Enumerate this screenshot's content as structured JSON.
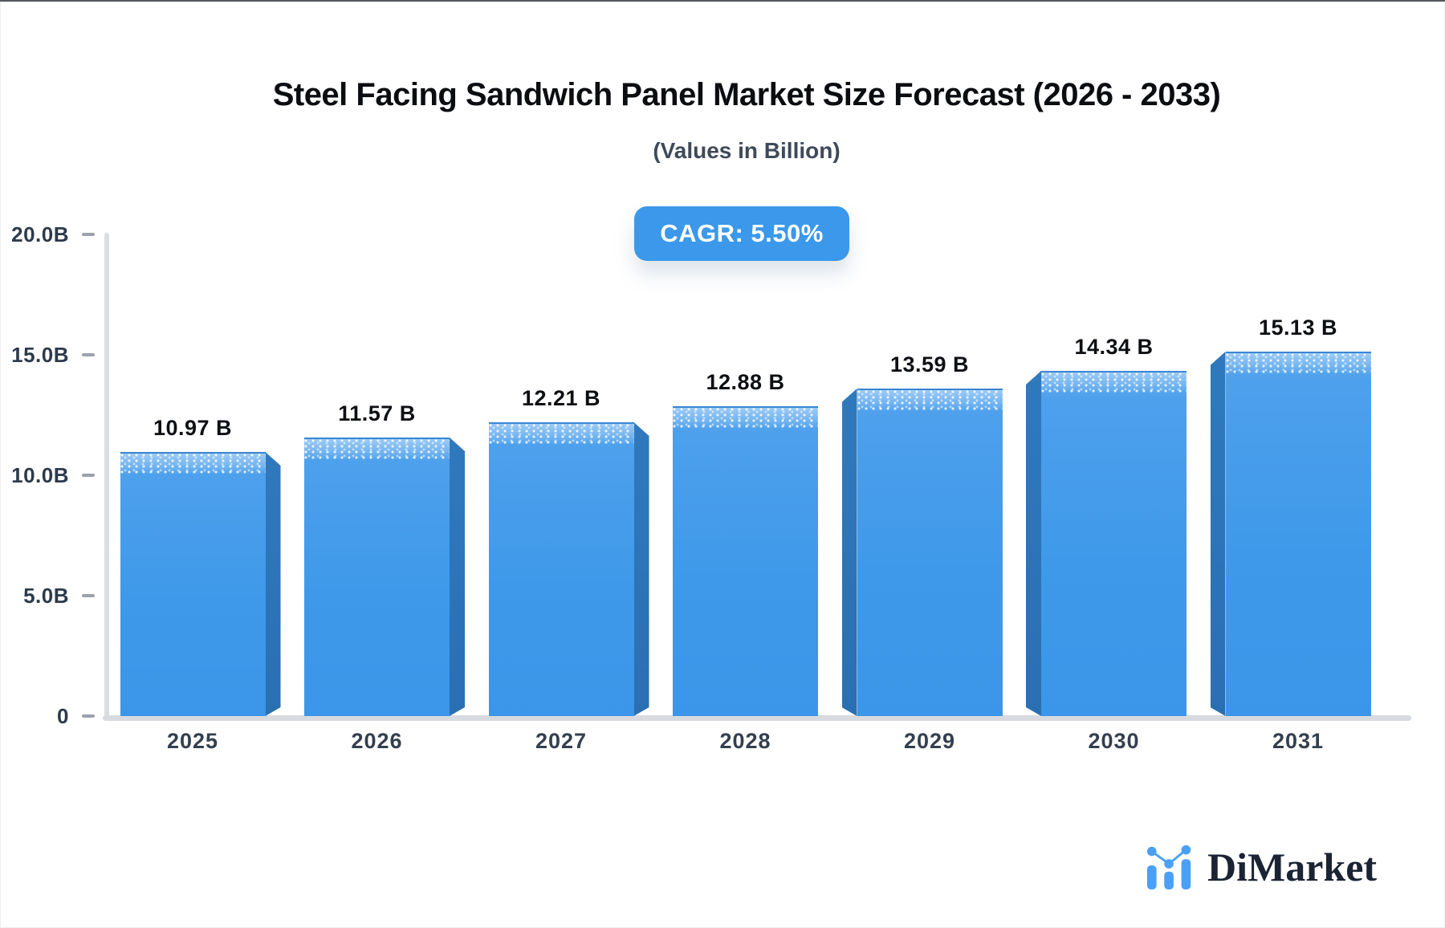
{
  "page": {
    "title": "Steel Facing Sandwich Panel Market Size Forecast (2026 - 2033)",
    "subtitle": "(Values in Billion)",
    "cagr_badge": "CAGR: 5.50%"
  },
  "chart_data": {
    "type": "bar",
    "title": "Steel Facing Sandwich Panel Market Size Forecast (2026 - 2033)",
    "subtitle": "(Values in Billion)",
    "cagr_text": "CAGR: 5.50%",
    "cagr_value_percent": 5.5,
    "unit": "Billion",
    "categories": [
      "2025",
      "2026",
      "2027",
      "2028",
      "2029",
      "2030",
      "2031"
    ],
    "values": [
      10.97,
      11.57,
      12.21,
      12.88,
      13.59,
      14.34,
      15.13
    ],
    "value_labels": [
      "10.97 B",
      "11.57 B",
      "12.21 B",
      "12.88 B",
      "13.59 B",
      "14.34 B",
      "15.13 B"
    ],
    "xlabel": "",
    "ylabel": "",
    "ylim": [
      0,
      20
    ],
    "y_ticks": [
      {
        "value": 0,
        "label": "0"
      },
      {
        "value": 5,
        "label": "5.0B"
      },
      {
        "value": 10,
        "label": "10.0B"
      },
      {
        "value": 15,
        "label": "15.0B"
      },
      {
        "value": 20,
        "label": "20.0B"
      }
    ],
    "grid": false,
    "legend": false,
    "colors": {
      "bar_front": "#3f99ea",
      "bar_front_light": "#65acf0",
      "bar_side": "#2a72b6",
      "bar_top_sheen": "#7cb9f3",
      "axis_line": "#d8dbdf",
      "tick_mark": "#9aa2ac",
      "axis_label": "#2c3a4b",
      "value_label": "#0d0f13",
      "badge_bg": "#3b98ea",
      "badge_text": "#ffffff"
    }
  },
  "branding": {
    "logo_text": "DiMarket",
    "logo_icon": "mini-bar-line-chart-icon",
    "logo_text_color": "#1b2334",
    "logo_icon_color": "#4aa0f5"
  }
}
